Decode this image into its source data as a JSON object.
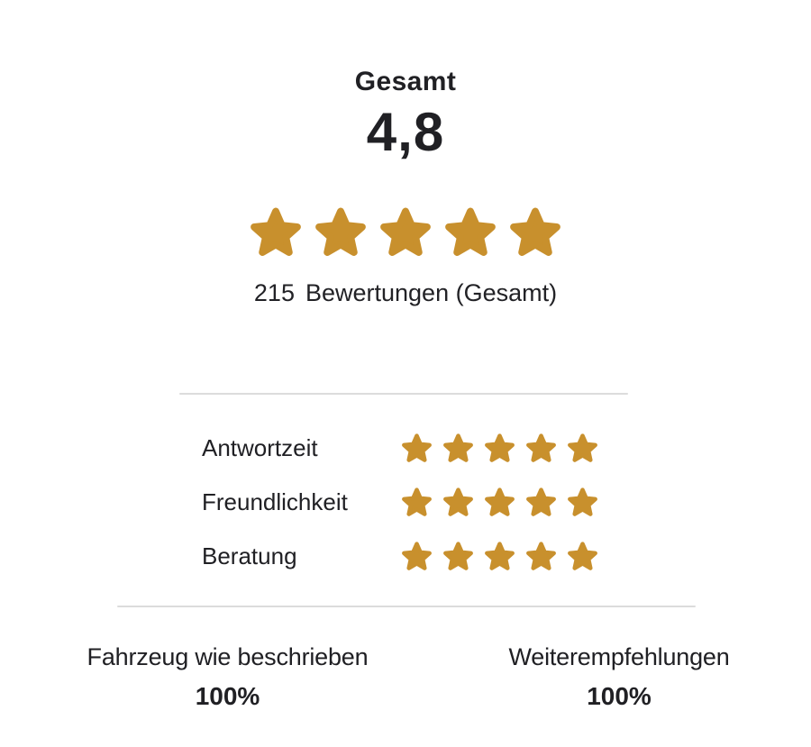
{
  "colors": {
    "star": "#C8902D",
    "text": "#202024",
    "divider": "#DCDCDC",
    "background": "#FFFFFF"
  },
  "overall": {
    "title": "Gesamt",
    "score": "4,8",
    "stars": 5,
    "reviews_count": "215",
    "reviews_label": "Bewertungen (Gesamt)"
  },
  "categories": [
    {
      "label": "Antwortzeit",
      "stars": 5
    },
    {
      "label": "Freundlichkeit",
      "stars": 5
    },
    {
      "label": "Beratung",
      "stars": 5
    }
  ],
  "stats": [
    {
      "label": "Fahrzeug wie beschrieben",
      "value": "100%"
    },
    {
      "label": "Weiterempfehlungen",
      "value": "100%"
    }
  ]
}
